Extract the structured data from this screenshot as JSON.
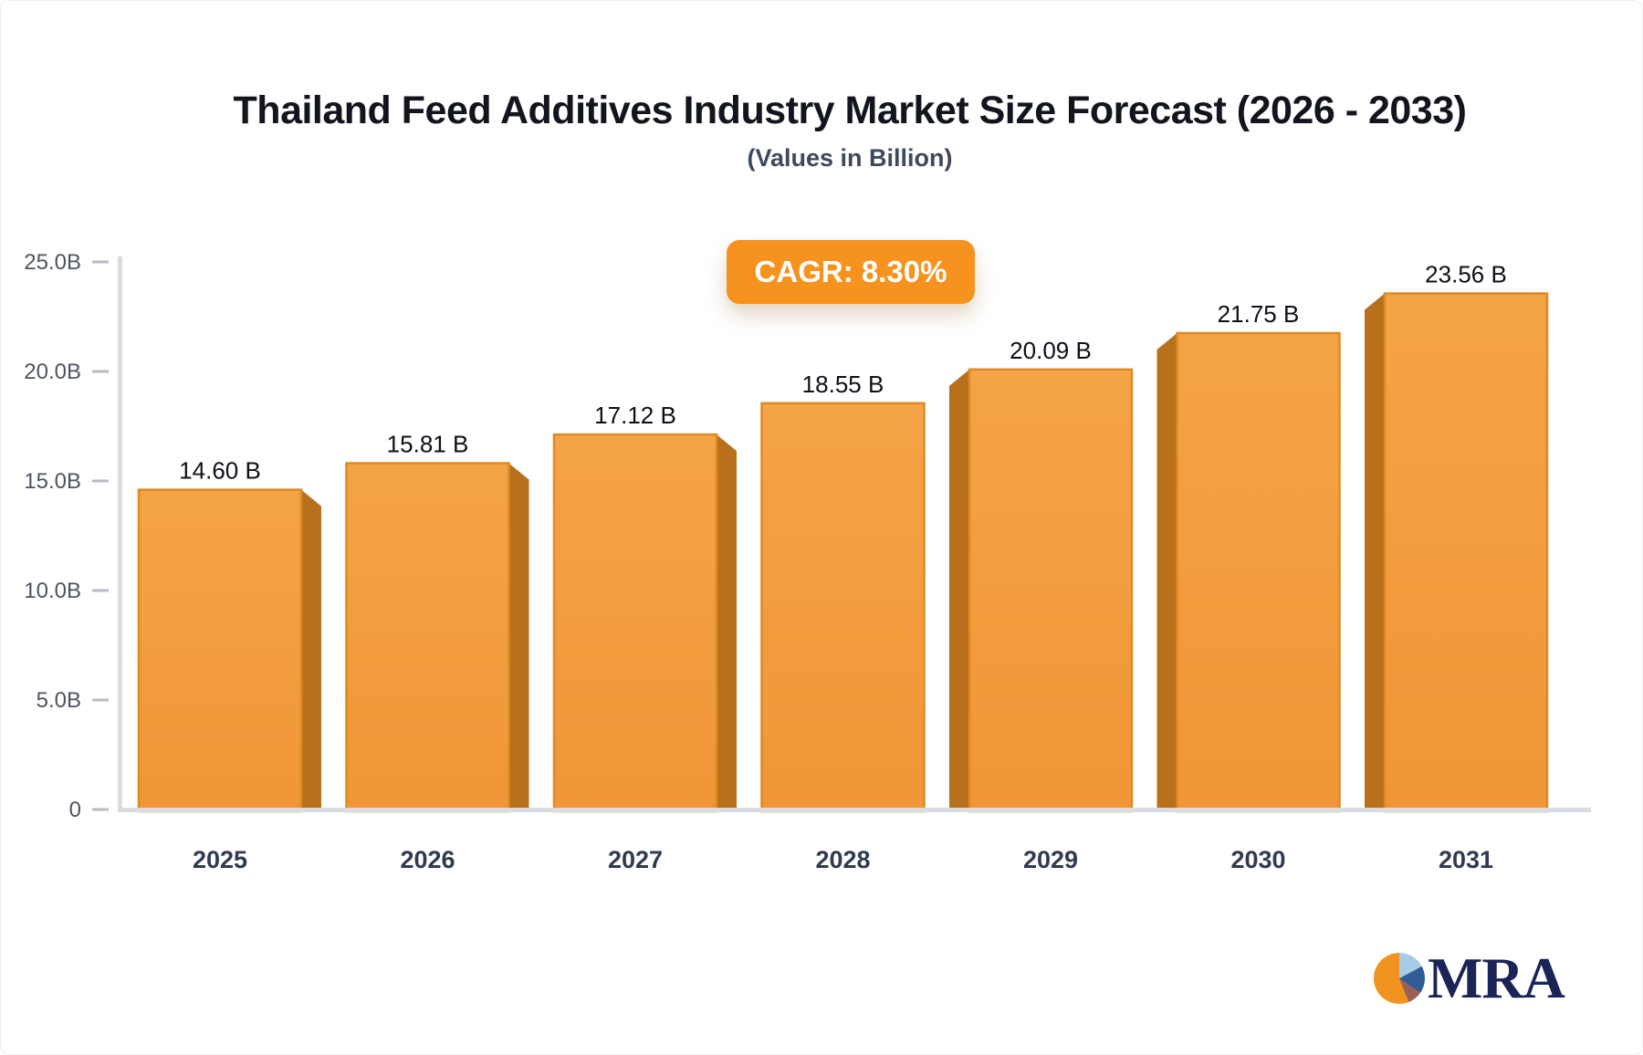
{
  "chart_data": {
    "type": "bar",
    "title": "Thailand Feed Additives Industry Market Size Forecast (2026 - 2033)",
    "subtitle": "(Values in Billion)",
    "badge_label": "CAGR: 8.30%",
    "categories": [
      "2025",
      "2026",
      "2027",
      "2028",
      "2029",
      "2030",
      "2031"
    ],
    "values": [
      14.6,
      15.81,
      17.12,
      18.55,
      20.09,
      21.75,
      23.56
    ],
    "value_labels": [
      "14.60 B",
      "15.81 B",
      "17.12 B",
      "18.55 B",
      "20.09 B",
      "21.75 B",
      "23.56 B"
    ],
    "ytick_labels": [
      "25.0B",
      "20.0B",
      "15.0B",
      "10.0B",
      "5.0B",
      "0"
    ],
    "ytick_values": [
      25,
      20,
      15,
      10,
      5,
      0
    ],
    "ylim": [
      0,
      25
    ],
    "xlabel": "",
    "ylabel": "",
    "grid": false,
    "legend": "none",
    "colors": {
      "bar_top": "#f4a347",
      "bar_bottom": "#f09638",
      "bar_stroke": "#de8a20",
      "bar_side": "#b8701c",
      "axis_line": "#d9dce1",
      "tick_mark": "#b6bbc4",
      "ytick_text": "#4e5560",
      "xtick_text": "#2f3b52",
      "value_text": "#0c1018",
      "badge_bg": "#f6921e",
      "badge_text": "#ffffff",
      "title_text": "#12151d",
      "subtitle_text": "#3e4a5c"
    }
  },
  "logo": {
    "text": "MRA",
    "text_color": "#1a2456",
    "pie_slices": [
      {
        "name": "light-blue-slice",
        "color": "#a8cce8",
        "from": 0,
        "to": 62
      },
      {
        "name": "steel-blue-slice",
        "color": "#2f5e96",
        "from": 62,
        "to": 124
      },
      {
        "name": "maroon-slice",
        "color": "#9c6058",
        "from": 124,
        "to": 158
      },
      {
        "name": "orange-slice",
        "color": "#f0941f",
        "from": 158,
        "to": 360
      }
    ]
  }
}
